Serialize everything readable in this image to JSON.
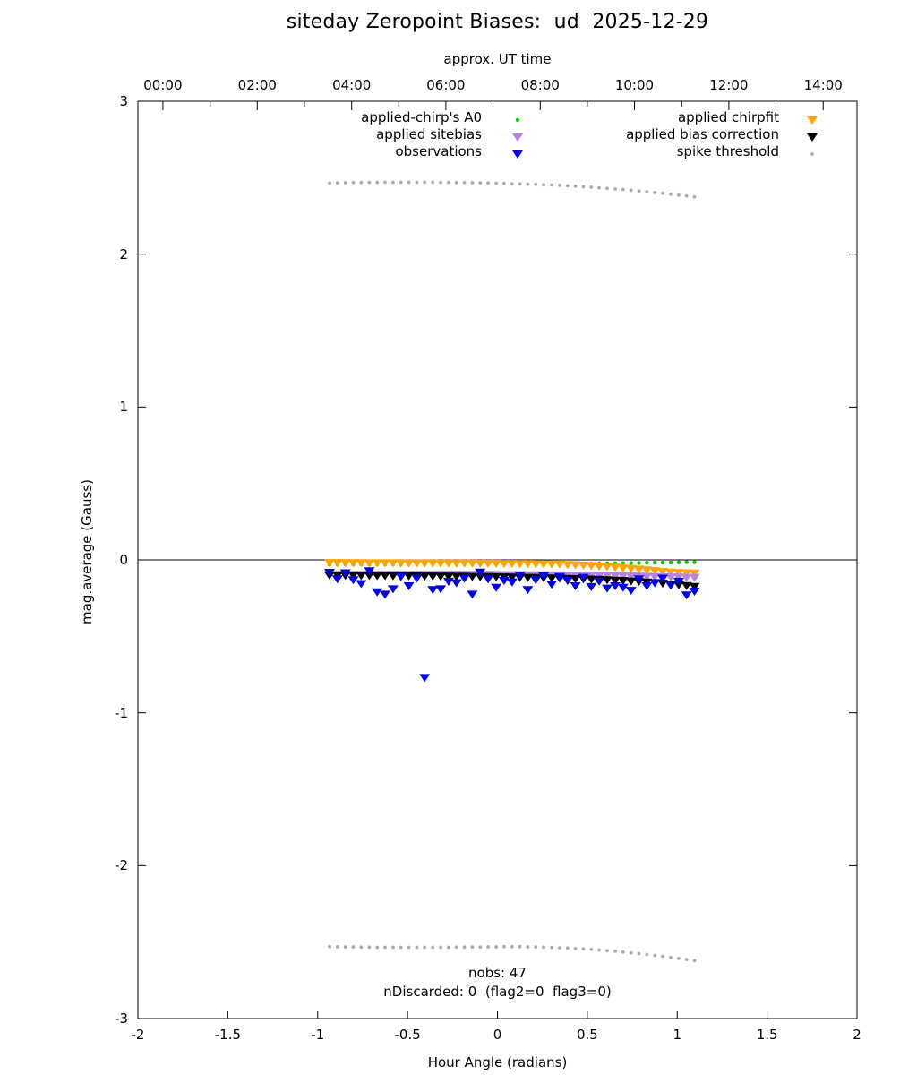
{
  "chart_data": {
    "type": "scatter",
    "title": "siteday Zeropoint Biases:  ud  2025-12-29",
    "xlabel": "Hour Angle (radians)",
    "ylabel": "mag.average (Gauss)",
    "x2label": "approx. UT time",
    "xlim": [
      -2,
      2
    ],
    "ylim": [
      -3,
      3
    ],
    "grid": false,
    "legend_position": "top-inside-two-columns",
    "x_ticks": [
      {
        "value": -2,
        "label": "-2"
      },
      {
        "value": -1.5,
        "label": "-1.5"
      },
      {
        "value": -1,
        "label": "-1"
      },
      {
        "value": -0.5,
        "label": "-0.5"
      },
      {
        "value": 0,
        "label": "0"
      },
      {
        "value": 0.5,
        "label": "0.5"
      },
      {
        "value": 1,
        "label": "1"
      },
      {
        "value": 1.5,
        "label": "1.5"
      },
      {
        "value": 2,
        "label": "2"
      }
    ],
    "y_ticks": [
      {
        "value": 3,
        "label": "3"
      },
      {
        "value": 2,
        "label": "2"
      },
      {
        "value": 1,
        "label": "1"
      },
      {
        "value": 0,
        "label": "0"
      },
      {
        "value": -1,
        "label": "-1"
      },
      {
        "value": -2,
        "label": "-2"
      },
      {
        "value": -3,
        "label": "-3"
      }
    ],
    "x2_ticks": [
      {
        "value": -1.861,
        "label": "00:00"
      },
      {
        "value": -1.598,
        "label": ""
      },
      {
        "value": -1.336,
        "label": "02:00"
      },
      {
        "value": -1.074,
        "label": ""
      },
      {
        "value": -0.811,
        "label": "04:00"
      },
      {
        "value": -0.549,
        "label": ""
      },
      {
        "value": -0.287,
        "label": "06:00"
      },
      {
        "value": -0.025,
        "label": ""
      },
      {
        "value": 0.238,
        "label": "08:00"
      },
      {
        "value": 0.5,
        "label": ""
      },
      {
        "value": 0.762,
        "label": "10:00"
      },
      {
        "value": 1.025,
        "label": ""
      },
      {
        "value": 1.287,
        "label": "12:00"
      },
      {
        "value": 1.549,
        "label": ""
      },
      {
        "value": 1.812,
        "label": "14:00"
      }
    ],
    "zero_line": 0,
    "x": [
      -0.934,
      -0.89,
      -0.846,
      -0.802,
      -0.758,
      -0.713,
      -0.669,
      -0.625,
      -0.581,
      -0.537,
      -0.493,
      -0.449,
      -0.405,
      -0.36,
      -0.316,
      -0.272,
      -0.228,
      -0.184,
      -0.14,
      -0.096,
      -0.052,
      -0.007,
      0.037,
      0.081,
      0.125,
      0.169,
      0.213,
      0.257,
      0.302,
      0.346,
      0.39,
      0.434,
      0.478,
      0.522,
      0.566,
      0.61,
      0.655,
      0.699,
      0.743,
      0.787,
      0.831,
      0.875,
      0.919,
      0.964,
      1.008,
      1.052,
      1.096
    ],
    "series": [
      {
        "name": "applied-chirp's A0",
        "marker": "dot",
        "color": "#00C800",
        "size": 2.2,
        "values": [
          -0.031,
          -0.031,
          -0.03,
          -0.03,
          -0.03,
          -0.03,
          -0.03,
          -0.03,
          -0.029,
          -0.029,
          -0.029,
          -0.029,
          -0.029,
          -0.028,
          -0.028,
          -0.028,
          -0.028,
          -0.028,
          -0.028,
          -0.028,
          -0.028,
          -0.028,
          -0.027,
          -0.027,
          -0.027,
          -0.027,
          -0.027,
          -0.026,
          -0.026,
          -0.026,
          -0.025,
          -0.025,
          -0.024,
          -0.024,
          -0.023,
          -0.023,
          -0.022,
          -0.021,
          -0.021,
          -0.02,
          -0.019,
          -0.018,
          -0.018,
          -0.017,
          -0.016,
          -0.015,
          -0.015
        ]
      },
      {
        "name": "applied chirpfit",
        "marker": "triangle-down",
        "color": "#FFA500",
        "values": [
          -0.018,
          -0.018,
          -0.019,
          -0.019,
          -0.019,
          -0.02,
          -0.02,
          -0.02,
          -0.02,
          -0.021,
          -0.021,
          -0.021,
          -0.021,
          -0.021,
          -0.022,
          -0.022,
          -0.022,
          -0.022,
          -0.022,
          -0.023,
          -0.023,
          -0.023,
          -0.024,
          -0.024,
          -0.025,
          -0.025,
          -0.026,
          -0.027,
          -0.028,
          -0.029,
          -0.031,
          -0.033,
          -0.035,
          -0.038,
          -0.041,
          -0.044,
          -0.048,
          -0.052,
          -0.056,
          -0.061,
          -0.066,
          -0.071,
          -0.076,
          -0.08,
          -0.083,
          -0.085,
          -0.087
        ]
      },
      {
        "name": "applied sitebias",
        "marker": "triangle-down",
        "color": "#B583E6",
        "values": [
          -0.095,
          -0.095,
          -0.095,
          -0.095,
          -0.095,
          -0.095,
          -0.095,
          -0.095,
          -0.095,
          -0.095,
          -0.095,
          -0.095,
          -0.095,
          -0.095,
          -0.095,
          -0.095,
          -0.095,
          -0.095,
          -0.096,
          -0.096,
          -0.096,
          -0.096,
          -0.097,
          -0.097,
          -0.097,
          -0.098,
          -0.098,
          -0.098,
          -0.099,
          -0.099,
          -0.1,
          -0.1,
          -0.101,
          -0.101,
          -0.102,
          -0.103,
          -0.104,
          -0.105,
          -0.106,
          -0.107,
          -0.108,
          -0.11,
          -0.111,
          -0.112,
          -0.113,
          -0.114,
          -0.115
        ]
      },
      {
        "name": "applied bias correction",
        "marker": "triangle-down",
        "color": "#000000",
        "values": [
          -0.1,
          -0.1,
          -0.101,
          -0.101,
          -0.102,
          -0.102,
          -0.103,
          -0.103,
          -0.104,
          -0.104,
          -0.105,
          -0.105,
          -0.106,
          -0.106,
          -0.107,
          -0.107,
          -0.108,
          -0.108,
          -0.109,
          -0.11,
          -0.11,
          -0.111,
          -0.112,
          -0.113,
          -0.114,
          -0.115,
          -0.116,
          -0.117,
          -0.118,
          -0.12,
          -0.121,
          -0.123,
          -0.124,
          -0.126,
          -0.128,
          -0.13,
          -0.133,
          -0.135,
          -0.138,
          -0.141,
          -0.145,
          -0.149,
          -0.153,
          -0.158,
          -0.163,
          -0.168,
          -0.174
        ]
      },
      {
        "name": "observations",
        "marker": "triangle-down",
        "color": "#0000E0",
        "values": [
          -0.082,
          -0.125,
          -0.085,
          -0.13,
          -0.155,
          -0.072,
          -0.21,
          -0.225,
          -0.19,
          -0.11,
          -0.17,
          -0.12,
          -0.77,
          -0.195,
          -0.19,
          -0.14,
          -0.15,
          -0.12,
          -0.225,
          -0.08,
          -0.125,
          -0.18,
          -0.135,
          -0.145,
          -0.1,
          -0.195,
          -0.13,
          -0.105,
          -0.16,
          -0.11,
          -0.135,
          -0.17,
          -0.115,
          -0.175,
          -0.14,
          -0.185,
          -0.17,
          -0.18,
          -0.2,
          -0.125,
          -0.17,
          -0.15,
          -0.12,
          -0.165,
          -0.14,
          -0.23,
          -0.205
        ]
      },
      {
        "name": "spike threshold",
        "marker": "dot",
        "color": "#ABABAB",
        "size": 1.9,
        "upper": [
          2.465,
          2.466,
          2.467,
          2.468,
          2.468,
          2.469,
          2.469,
          2.47,
          2.47,
          2.47,
          2.47,
          2.47,
          2.47,
          2.47,
          2.469,
          2.469,
          2.468,
          2.468,
          2.467,
          2.466,
          2.465,
          2.464,
          2.463,
          2.461,
          2.46,
          2.458,
          2.456,
          2.454,
          2.452,
          2.45,
          2.447,
          2.444,
          2.441,
          2.438,
          2.434,
          2.43,
          2.426,
          2.422,
          2.418,
          2.413,
          2.408,
          2.403,
          2.398,
          2.392,
          2.386,
          2.38,
          2.374
        ],
        "lower": [
          -2.53,
          -2.531,
          -2.532,
          -2.532,
          -2.533,
          -2.533,
          -2.534,
          -2.534,
          -2.534,
          -2.534,
          -2.534,
          -2.534,
          -2.534,
          -2.534,
          -2.534,
          -2.534,
          -2.533,
          -2.533,
          -2.532,
          -2.532,
          -2.531,
          -2.531,
          -2.53,
          -2.53,
          -2.53,
          -2.531,
          -2.532,
          -2.533,
          -2.535,
          -2.537,
          -2.539,
          -2.542,
          -2.545,
          -2.548,
          -2.552,
          -2.556,
          -2.56,
          -2.565,
          -2.57,
          -2.575,
          -2.581,
          -2.587,
          -2.593,
          -2.6,
          -2.607,
          -2.614,
          -2.621
        ]
      }
    ],
    "annotations": {
      "nobs": "nobs: 47",
      "ndiscarded": "nDiscarded: 0  (flag2=0  flag3=0)"
    }
  },
  "legend": {
    "left_column_series": [
      0,
      2,
      4
    ],
    "right_column_series": [
      1,
      3,
      5
    ]
  }
}
